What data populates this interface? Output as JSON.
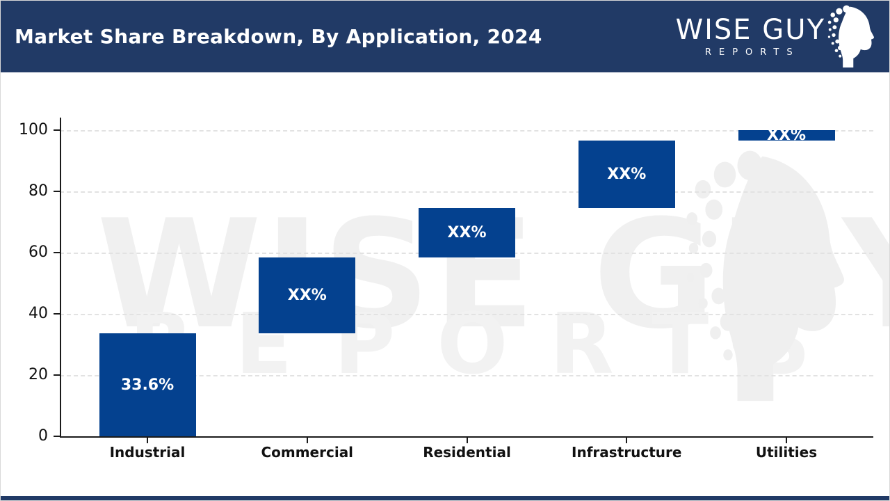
{
  "header": {
    "title": "Market Share Breakdown, By Application, 2024",
    "logo": {
      "line1": "WISE GUY",
      "line2": "REPORTS"
    }
  },
  "watermark": {
    "line1": "WISE GUY",
    "line2": "REPORTS"
  },
  "colors": {
    "header_bg": "#213A66",
    "footer_bg": "#213A66",
    "bar_blue": "#04418F",
    "axis": "#1A1A1A",
    "gridline": "#E2E2E2",
    "watermark_gray": "#F0F0F0",
    "label_white": "#FFFFFF"
  },
  "chart_data": {
    "type": "bar",
    "subtype": "waterfall",
    "title": "Market Share Breakdown, By Application, 2024",
    "categories": [
      "Industrial",
      "Commercial",
      "Residential",
      "Infrastructure",
      "Utilities"
    ],
    "values": [
      33.6,
      24.9,
      16.1,
      21.9,
      3.5
    ],
    "cumulative_starts": [
      0,
      33.6,
      58.5,
      74.6,
      96.5
    ],
    "bar_labels": [
      "33.6%",
      "XX%",
      "XX%",
      "XX%",
      "XX%"
    ],
    "xlabel": "",
    "ylabel": "",
    "ylim": [
      0,
      100
    ],
    "yticks": [
      0,
      20,
      40,
      60,
      80,
      100
    ],
    "grid": "horizontal-dashed",
    "legend": "none",
    "bar_color": "#04418F"
  }
}
